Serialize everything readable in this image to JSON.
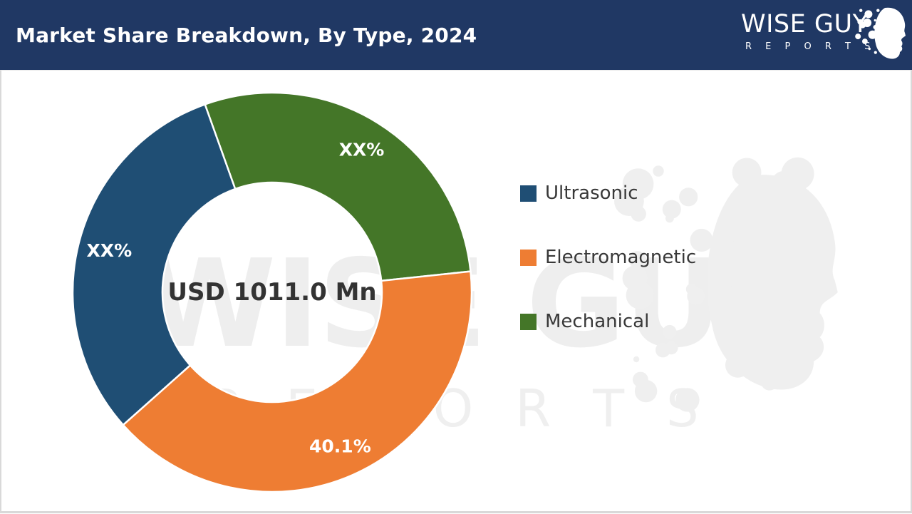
{
  "header": {
    "title": "Market Share Breakdown, By Type, 2024",
    "bg_color": "#203864",
    "logo": {
      "name": "WISE GUY",
      "subtitle": "R E P O R T S"
    }
  },
  "watermark": {
    "line1": "WISE GUY",
    "line2": "R E P O R T S"
  },
  "chart_data": {
    "type": "pie",
    "subtype": "donut",
    "title": "Market Share Breakdown, By Type, 2024",
    "center_label": "USD 1011.0 Mn",
    "start_angle_deg": 109.7,
    "direction": "clockwise",
    "segments": [
      {
        "name": "Mechanical",
        "value_pct": 28.8,
        "display_label": "XX%",
        "color": "#447628"
      },
      {
        "name": "Electromagnetic",
        "value_pct": 40.1,
        "display_label": "40.1%",
        "color": "#EE7D33"
      },
      {
        "name": "Ultrasonic",
        "value_pct": 31.1,
        "display_label": "XX%",
        "color": "#1F4E74"
      }
    ],
    "legend": {
      "position": "right",
      "items": [
        {
          "label": "Ultrasonic",
          "color": "#1F4E74"
        },
        {
          "label": "Electromagnetic",
          "color": "#EE7D33"
        },
        {
          "label": "Mechanical",
          "color": "#447628"
        }
      ]
    }
  }
}
